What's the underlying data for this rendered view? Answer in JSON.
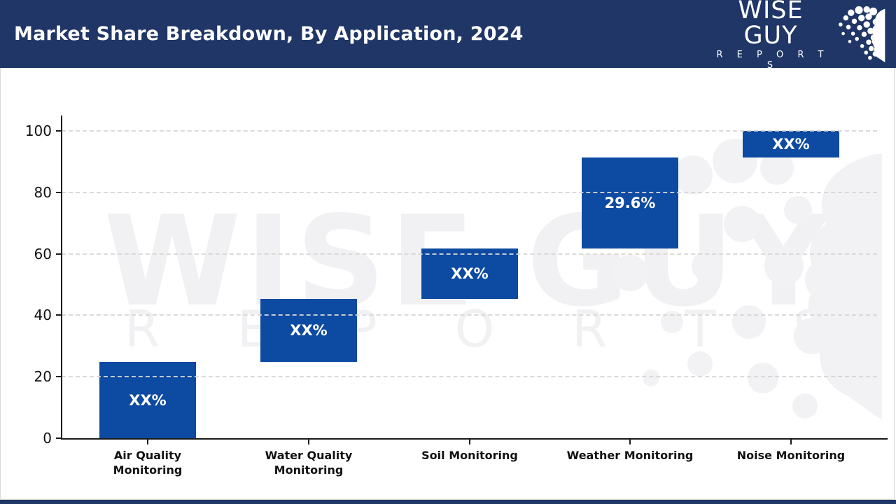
{
  "header": {
    "title": "Market Share Breakdown, By Application, 2024",
    "logo": {
      "line1": "WISE GUY",
      "line2": "R E P O R T S"
    }
  },
  "watermark": {
    "line1": "WISE GUY",
    "line2": "R E P O R T S"
  },
  "chart_data": {
    "type": "bar",
    "subtype": "waterfall",
    "title": "Market Share Breakdown, By Application, 2024",
    "categories": [
      "Air Quality Monitoring",
      "Water Quality Monitoring",
      "Soil Monitoring",
      "Weather Monitoring",
      "Noise Monitoring"
    ],
    "categories_lines": [
      [
        "Air Quality",
        "Monitoring"
      ],
      [
        "Water Quality",
        "Monitoring"
      ],
      [
        "Soil Monitoring"
      ],
      [
        "Weather Monitoring"
      ],
      [
        "Noise Monitoring"
      ]
    ],
    "segments": [
      {
        "category": "Air Quality Monitoring",
        "start": 0,
        "end": 24.8,
        "value": 24.8,
        "label": "XX%"
      },
      {
        "category": "Water Quality Monitoring",
        "start": 24.8,
        "end": 45.3,
        "value": 20.5,
        "label": "XX%"
      },
      {
        "category": "Soil Monitoring",
        "start": 45.3,
        "end": 61.7,
        "value": 16.4,
        "label": "XX%"
      },
      {
        "category": "Weather Monitoring",
        "start": 61.7,
        "end": 91.3,
        "value": 29.6,
        "label": "29.6%"
      },
      {
        "category": "Noise Monitoring",
        "start": 91.3,
        "end": 100,
        "value": 8.7,
        "label": "XX%"
      }
    ],
    "y_ticks": [
      0,
      20,
      40,
      60,
      80,
      100
    ],
    "ylim": [
      0,
      105
    ],
    "xlabel": "",
    "ylabel": "",
    "grid": "horizontal-dashed",
    "legend": "none"
  },
  "colors": {
    "header_bg": "#1f3666",
    "footer_bg": "#1f3666",
    "bar": "#0d4aa1",
    "bar_label": "#ffffff",
    "axis": "#1a1a1a",
    "grid": "#d6d6d6",
    "watermark": "#f1f1f4",
    "title_text": "#ffffff",
    "tick_text": "#111111"
  }
}
